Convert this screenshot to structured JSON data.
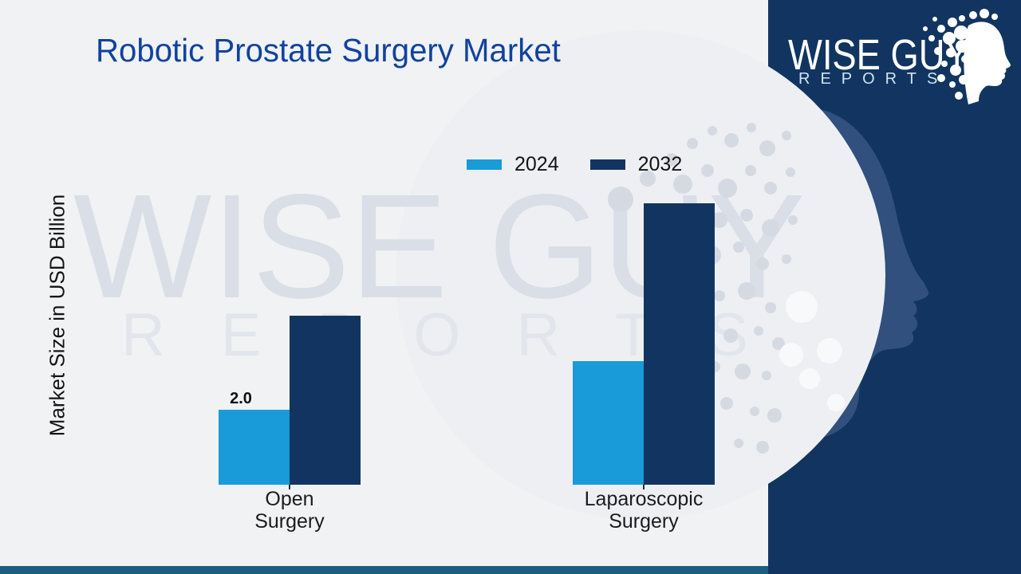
{
  "page": {
    "background": "#f0f2f4"
  },
  "title": {
    "text": "Robotic Prostate Surgery Market",
    "color": "#11429e"
  },
  "watermark": {
    "line1": "WISE GUY",
    "line2": "REPORTS",
    "line1_color": "#d9dee7",
    "line2_color": "#e2e6ec"
  },
  "brand": {
    "line1": "WISE GUY",
    "line2": "REPORTS",
    "panel_color": "#113560",
    "face_silhouette_color": "#31507e",
    "circle_color": "#edeff3",
    "reports_text_color": "#cfe3f1"
  },
  "footer": {
    "bar_color": "#1a5f7e"
  },
  "chart_data": {
    "type": "bar",
    "title": "Robotic Prostate Surgery Market",
    "xlabel": "",
    "ylabel": "Market Size in USD Billion",
    "categories": [
      "Open Surgery",
      "Laparoscopic Surgery"
    ],
    "category_label_lines": [
      [
        "Open",
        "Surgery"
      ],
      [
        "Laparoscopic",
        "Surgery"
      ]
    ],
    "series": [
      {
        "name": "2024",
        "color": "#189bd8",
        "values": [
          2.0,
          3.3
        ]
      },
      {
        "name": "2032",
        "color": "#113560",
        "values": [
          4.5,
          7.5
        ]
      }
    ],
    "data_labels": [
      {
        "series_index": 0,
        "category_index": 0,
        "text": "2.0"
      }
    ],
    "ylim": [
      0,
      8
    ],
    "grid": false,
    "legend_position": "top-right"
  }
}
